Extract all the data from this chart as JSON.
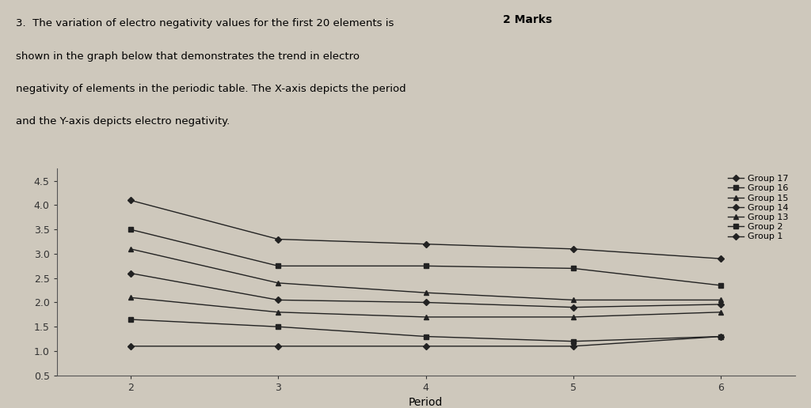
{
  "xlabel": "Period",
  "xlim": [
    1.5,
    6.5
  ],
  "ylim": [
    0.5,
    4.75
  ],
  "xticks": [
    2,
    3,
    4,
    5,
    6
  ],
  "yticks": [
    0.5,
    1.0,
    1.5,
    2.0,
    2.5,
    3.0,
    3.5,
    4.0,
    4.5
  ],
  "periods": [
    2,
    3,
    4,
    5,
    6
  ],
  "groups": {
    "Group 17": [
      4.1,
      3.3,
      3.2,
      3.1,
      2.9
    ],
    "Group 16": [
      3.5,
      2.75,
      2.75,
      2.7,
      2.35
    ],
    "Group 15": [
      3.1,
      2.4,
      2.2,
      2.05,
      2.05
    ],
    "Group 14": [
      2.6,
      2.05,
      2.0,
      1.9,
      1.96
    ],
    "Group 13": [
      2.1,
      1.8,
      1.7,
      1.7,
      1.8
    ],
    "Group 2": [
      1.65,
      1.5,
      1.3,
      1.2,
      1.3
    ],
    "Group 1": [
      1.1,
      1.1,
      1.1,
      1.1,
      1.3
    ]
  },
  "markers": {
    "Group 17": "D",
    "Group 16": "s",
    "Group 15": "^",
    "Group 14": "D",
    "Group 13": "^",
    "Group 2": "s",
    "Group 1": "D"
  },
  "background_color": "#cec8bc",
  "plot_bg_color": "#cec8bc",
  "line_color": "#222222",
  "legend_fontsize": 8,
  "axis_fontsize": 10,
  "tick_fontsize": 9,
  "text_lines": [
    "3.  The variation of electro negativity values for the first 20 elements is",
    "shown in the graph below that demonstrates the trend in electro",
    "negativity of elements in the periodic table. The X-axis depicts the period",
    "and the Y-axis depicts electro negativity."
  ],
  "header_line": "2 Marks"
}
